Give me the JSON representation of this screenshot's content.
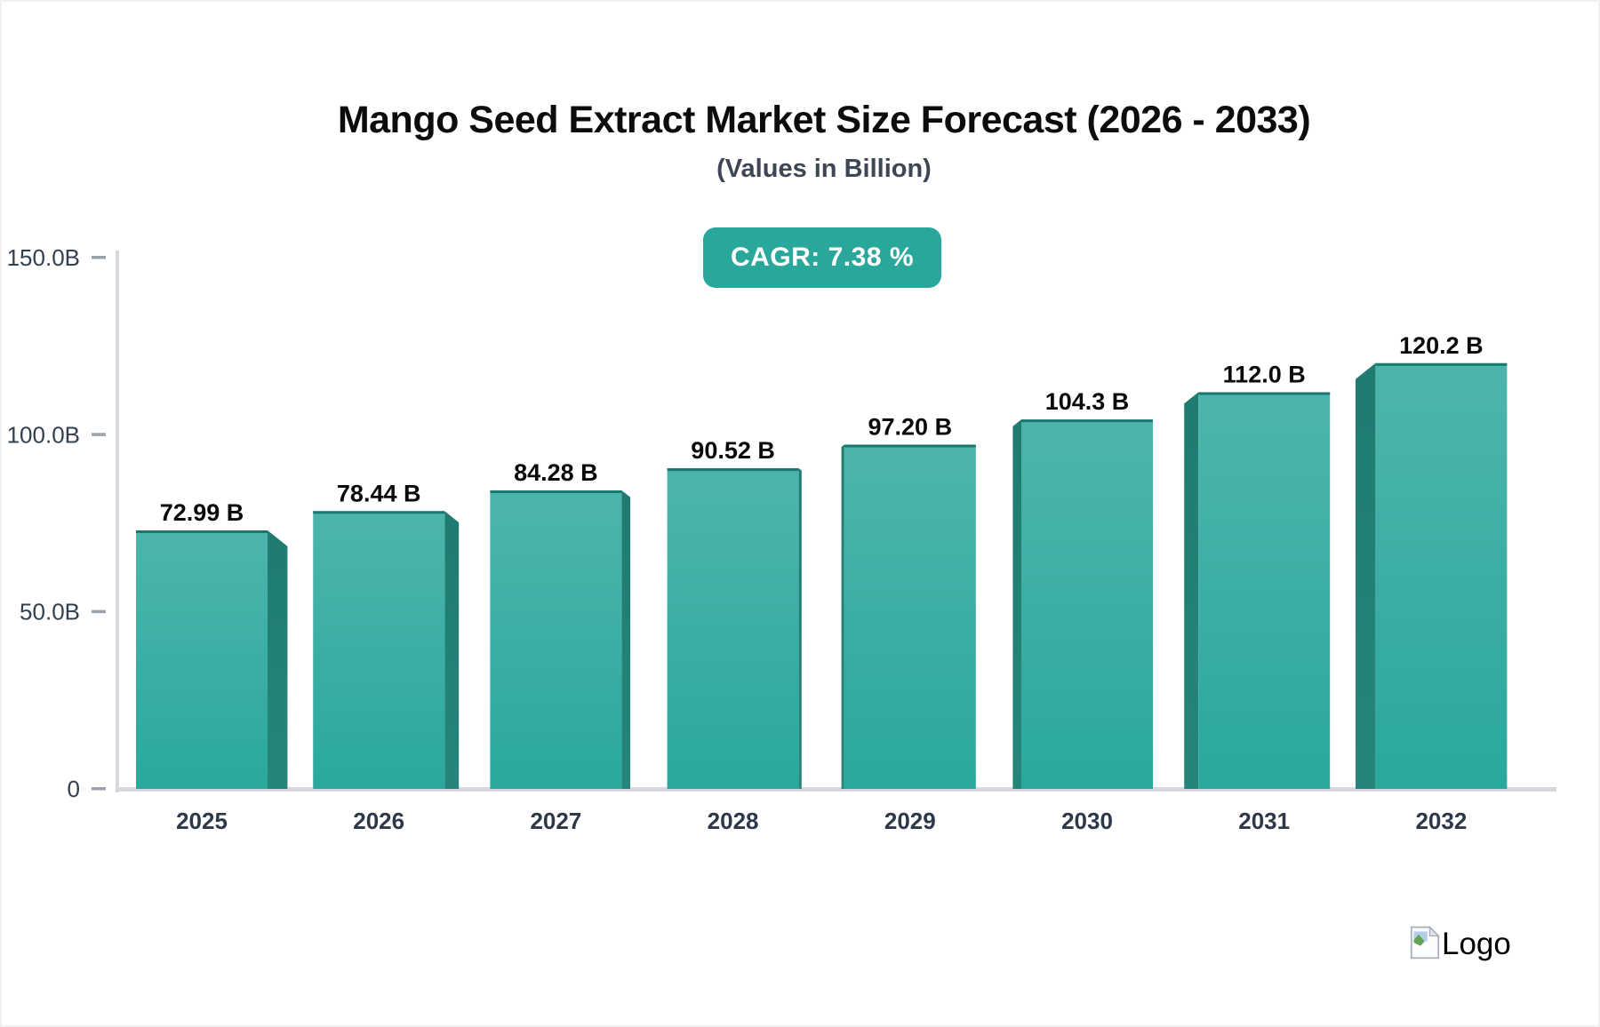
{
  "header": {
    "title": "Mango Seed Extract Market Size Forecast (2026 - 2033)",
    "subtitle": "(Values in Billion)",
    "cagr_text": "CAGR: 7.38 %",
    "badge_color": "#2aa79b"
  },
  "footer": {
    "logo_alt": "Logo"
  },
  "chart_data": {
    "type": "bar",
    "title": "Mango Seed Extract Market Size Forecast (2026 - 2033)",
    "subtitle": "(Values in Billion)",
    "annotation": "CAGR: 7.38 %",
    "categories": [
      "2025",
      "2026",
      "2027",
      "2028",
      "2029",
      "2030",
      "2031",
      "2032"
    ],
    "values": [
      72.99,
      78.44,
      84.28,
      90.52,
      97.2,
      104.3,
      112.0,
      120.2
    ],
    "value_labels": [
      "72.99 B",
      "78.44 B",
      "84.28 B",
      "90.52 B",
      "97.20 B",
      "104.3 B",
      "112.0 B",
      "120.2 B"
    ],
    "y_ticks": [
      {
        "value": 0,
        "label": "0"
      },
      {
        "value": 50,
        "label": "50.0B"
      },
      {
        "value": 100,
        "label": "100.0B"
      },
      {
        "value": 150,
        "label": "150.0B"
      }
    ],
    "ylim": [
      0,
      150
    ],
    "grid": false,
    "legend": "none",
    "colors": {
      "face_top": "#4db5ab",
      "face_bottom": "#2aa89c",
      "side": "#1f7b70",
      "side_bottom": "#26857a",
      "face_edge": "#17796e",
      "axis_line": "#d6d8dd",
      "tick_mark": "#9aa1a9",
      "axis_label": "#33404f",
      "category_label": "#2d3848",
      "value_label": "#0a0a0a"
    }
  }
}
